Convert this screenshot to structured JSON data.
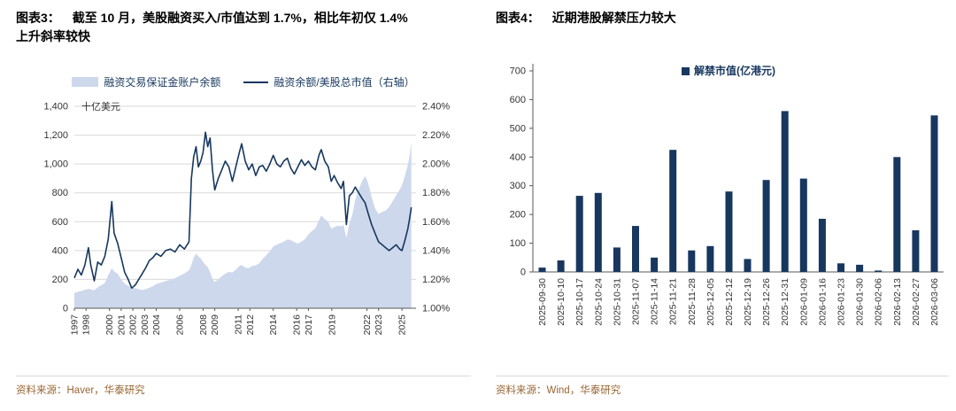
{
  "colors": {
    "navy": "#17375e",
    "area_fill": "#cdd8ec",
    "grid": "#d9d9d9",
    "axis": "#595959",
    "tick_text": "#333333",
    "source_text": "#996633"
  },
  "panels": {
    "left": {
      "title_prefix": "图表3：",
      "title_line1": "截至 10 月，美股融资买入/市值达到 1.7%，相比年初仅 1.4%",
      "title_line2": "上升斜率较快",
      "source_label": "资料来源：",
      "source_text": "Haver，华泰研究"
    },
    "right": {
      "title_prefix": "图表4：",
      "title_text": "近期港股解禁压力较大",
      "source_label": "资料来源：",
      "source_text": "Wind，华泰研究"
    }
  },
  "chart_data": [
    {
      "type": "area",
      "panel": "left",
      "legend": [
        {
          "label": "融资交易保证金账户余额",
          "marker": "area"
        },
        {
          "label": "融资余额/美股总市值（右轴）",
          "marker": "line"
        }
      ],
      "unit_label": "十亿美元",
      "x_range": [
        1997,
        2026.2
      ],
      "x_tick_years": [
        1997,
        1998,
        2000,
        2001,
        2002,
        2003,
        2004,
        2006,
        2008,
        2009,
        2011,
        2012,
        2014,
        2016,
        2017,
        2019,
        2022,
        2023,
        2025
      ],
      "left_axis": {
        "range": [
          0,
          1400
        ],
        "tick_labels_top_to_bottom": [
          "1,400",
          "1,200",
          "1,000",
          "800",
          "600",
          "400",
          "200",
          "0"
        ]
      },
      "right_axis": {
        "range": [
          1.0,
          2.4
        ],
        "tick_labels_top_to_bottom": [
          "2.40%",
          "2.20%",
          "2.00%",
          "1.80%",
          "1.60%",
          "1.40%",
          "1.20%",
          "1.00%"
        ]
      },
      "x": [
        1997.0,
        1997.3,
        1997.6,
        1997.9,
        1998.2,
        1998.4,
        1998.7,
        1999.0,
        1999.3,
        1999.6,
        1999.9,
        2000.2,
        2000.4,
        2000.7,
        2001.0,
        2001.3,
        2001.6,
        2001.9,
        2002.2,
        2002.5,
        2002.8,
        2003.1,
        2003.4,
        2003.7,
        2004.0,
        2004.4,
        2004.8,
        2005.2,
        2005.6,
        2006.0,
        2006.4,
        2006.8,
        2007.0,
        2007.2,
        2007.4,
        2007.6,
        2007.8,
        2008.0,
        2008.2,
        2008.4,
        2008.6,
        2008.8,
        2009.0,
        2009.3,
        2009.6,
        2009.9,
        2010.2,
        2010.5,
        2010.8,
        2011.1,
        2011.3,
        2011.6,
        2011.9,
        2012.2,
        2012.5,
        2012.8,
        2013.1,
        2013.4,
        2013.7,
        2014.0,
        2014.3,
        2014.6,
        2014.9,
        2015.2,
        2015.5,
        2015.8,
        2016.1,
        2016.4,
        2016.7,
        2017.0,
        2017.3,
        2017.6,
        2017.9,
        2018.1,
        2018.4,
        2018.7,
        2018.95,
        2019.2,
        2019.5,
        2019.8,
        2020.0,
        2020.25,
        2020.5,
        2020.75,
        2021.0,
        2021.3,
        2021.6,
        2021.85,
        2022.1,
        2022.4,
        2022.7,
        2023.0,
        2023.3,
        2023.6,
        2023.9,
        2024.2,
        2024.5,
        2024.8,
        2025.0,
        2025.25,
        2025.5,
        2025.65,
        2025.8
      ],
      "series": [
        {
          "name": "融资交易保证金账户余额",
          "type": "area",
          "axis": "left",
          "values": [
            105,
            115,
            120,
            128,
            135,
            130,
            125,
            145,
            160,
            175,
            230,
            278,
            255,
            240,
            200,
            170,
            155,
            145,
            140,
            132,
            128,
            132,
            142,
            152,
            168,
            178,
            188,
            198,
            208,
            225,
            242,
            262,
            300,
            350,
            378,
            360,
            345,
            322,
            300,
            285,
            250,
            205,
            182,
            200,
            222,
            240,
            252,
            248,
            268,
            292,
            300,
            282,
            278,
            292,
            298,
            312,
            342,
            368,
            395,
            428,
            442,
            452,
            462,
            478,
            472,
            458,
            448,
            462,
            478,
            512,
            535,
            555,
            610,
            642,
            618,
            598,
            552,
            562,
            572,
            568,
            578,
            488,
            588,
            648,
            752,
            822,
            882,
            918,
            868,
            772,
            692,
            652,
            668,
            678,
            702,
            742,
            782,
            822,
            852,
            918,
            992,
            1058,
            1148
          ]
        },
        {
          "name": "融资余额/美股总市值（右轴）",
          "type": "line",
          "axis": "right",
          "values": [
            1.21,
            1.27,
            1.23,
            1.3,
            1.42,
            1.3,
            1.19,
            1.32,
            1.3,
            1.36,
            1.48,
            1.74,
            1.52,
            1.45,
            1.35,
            1.25,
            1.2,
            1.14,
            1.16,
            1.2,
            1.24,
            1.28,
            1.33,
            1.35,
            1.38,
            1.36,
            1.4,
            1.41,
            1.39,
            1.44,
            1.41,
            1.46,
            1.9,
            2.05,
            2.12,
            1.98,
            2.02,
            2.08,
            2.22,
            2.12,
            2.18,
            1.96,
            1.82,
            1.9,
            1.96,
            2.02,
            1.98,
            1.88,
            1.98,
            2.08,
            2.14,
            2.02,
            1.96,
            2.0,
            1.92,
            1.98,
            1.99,
            1.95,
            2.0,
            2.06,
            2.0,
            1.98,
            2.02,
            2.04,
            1.97,
            1.93,
            1.98,
            2.03,
            1.99,
            2.02,
            1.98,
            1.96,
            2.06,
            2.1,
            2.02,
            1.98,
            1.88,
            1.92,
            1.87,
            1.83,
            1.88,
            1.58,
            1.78,
            1.8,
            1.84,
            1.8,
            1.76,
            1.73,
            1.66,
            1.58,
            1.52,
            1.46,
            1.44,
            1.42,
            1.4,
            1.42,
            1.44,
            1.41,
            1.4,
            1.47,
            1.55,
            1.62,
            1.7
          ]
        }
      ]
    },
    {
      "type": "bar",
      "panel": "right",
      "legend": "解禁市值(亿港元)",
      "categories": [
        "2025-09-30",
        "2025-10-10",
        "2025-10-17",
        "2025-10-24",
        "2025-10-31",
        "2025-11-07",
        "2025-11-14",
        "2025-11-21",
        "2025-11-28",
        "2025-12-05",
        "2025-12-12",
        "2025-12-19",
        "2025-12-26",
        "2025-12-31",
        "2026-01-09",
        "2026-01-16",
        "2026-01-23",
        "2026-01-30",
        "2026-02-06",
        "2026-02-13",
        "2026-02-27",
        "2026-03-06"
      ],
      "values": [
        15,
        40,
        265,
        275,
        85,
        160,
        50,
        425,
        75,
        90,
        280,
        45,
        320,
        560,
        325,
        185,
        30,
        25,
        5,
        400,
        145,
        545
      ],
      "ylim": [
        0,
        700
      ],
      "ytick_labels_top_to_bottom": [
        "700",
        "600",
        "500",
        "400",
        "300",
        "200",
        "100",
        "0"
      ]
    }
  ]
}
